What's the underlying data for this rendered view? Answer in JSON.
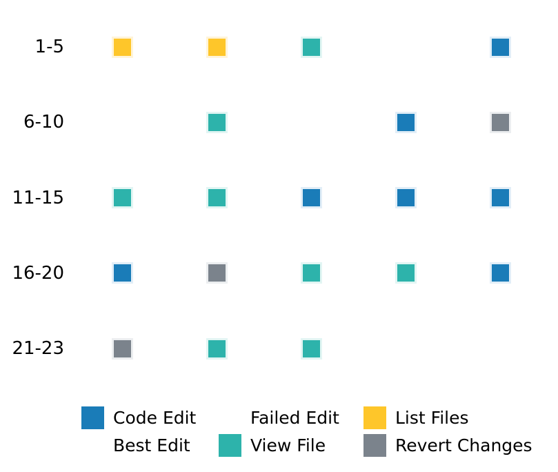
{
  "chart_data": {
    "type": "scatter",
    "title": "",
    "xlabel": "",
    "ylabel": "",
    "grid": false,
    "background": "#ffffff",
    "y_categories": [
      "1-5",
      "6-10",
      "11-15",
      "16-20",
      "21-23"
    ],
    "rows": [
      {
        "label": "1-5",
        "actions": [
          "List Files",
          "List Files",
          "View File",
          "Best Edit",
          "Code Edit"
        ]
      },
      {
        "label": "6-10",
        "actions": [
          "Failed Edit",
          "View File",
          "Best Edit",
          "Code Edit",
          "Revert Changes"
        ]
      },
      {
        "label": "11-15",
        "actions": [
          "View File",
          "View File",
          "Code Edit",
          "Code Edit",
          "Code Edit"
        ]
      },
      {
        "label": "16-20",
        "actions": [
          "Code Edit",
          "Revert Changes",
          "View File",
          "View File",
          "Code Edit"
        ]
      },
      {
        "label": "21-23",
        "actions": [
          "Revert Changes",
          "View File",
          "View File"
        ]
      }
    ],
    "marker_styles": {
      "Code Edit": {
        "marker": "square",
        "color": "#1a7cb8",
        "edge": "#e2eef7"
      },
      "Failed Edit": {
        "marker": "x",
        "color": "#1a7cb8",
        "edge": "#dcebf5"
      },
      "Best Edit": {
        "marker": "plus",
        "color": "#1a7cb8",
        "edge": "#dcebf5"
      },
      "View File": {
        "marker": "square",
        "color": "#2db3ab",
        "edge": "#e2f5f3"
      },
      "List Files": {
        "marker": "square",
        "color": "#fec62a",
        "edge": "#fff4d8"
      },
      "Revert Changes": {
        "marker": "square",
        "color": "#7b838c",
        "edge": "#eceef0"
      }
    },
    "legend": {
      "position": "bottom",
      "columns": 3,
      "items": [
        {
          "label": "Code Edit",
          "marker": "square",
          "color": "#1a7cb8"
        },
        {
          "label": "Failed Edit",
          "marker": "x",
          "color": "#1a7cb8"
        },
        {
          "label": "List Files",
          "marker": "square",
          "color": "#fec62a"
        },
        {
          "label": "Best Edit",
          "marker": "plus",
          "color": "#1a7cb8"
        },
        {
          "label": "View File",
          "marker": "square",
          "color": "#2db3ab"
        },
        {
          "label": "Revert Changes",
          "marker": "square",
          "color": "#7b838c"
        }
      ]
    }
  }
}
